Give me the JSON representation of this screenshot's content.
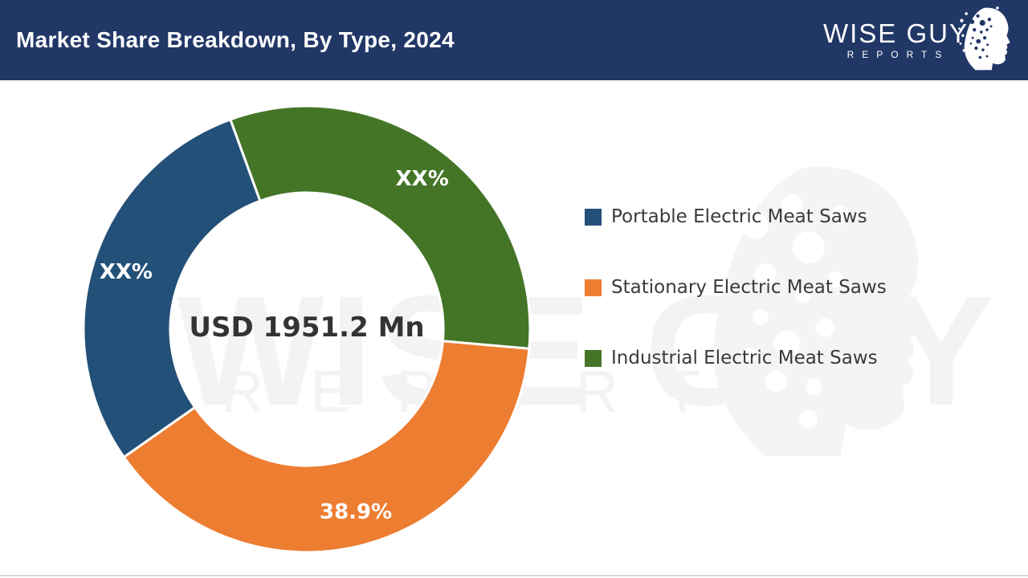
{
  "header": {
    "title": "Market Share Breakdown, By Type, 2024"
  },
  "logo": {
    "name_line": "WISE GUY",
    "sub_line": "REPORTS"
  },
  "watermark": {
    "name_line": "WISE GUY",
    "sub_line": "REPORTS"
  },
  "chart_data": {
    "type": "pie",
    "subtype": "donut",
    "title": "Market Share Breakdown, By Type, 2024",
    "center_label": "USD 1951.2 Mn",
    "legend_position": "right",
    "geometry": {
      "outer_radius": 278,
      "inner_radius": 170,
      "label_radius": 236
    },
    "segments": [
      {
        "id": "portable",
        "label": "Portable Electric Meat Saws",
        "display_label": "XX%",
        "start_angle": 235,
        "end_angle": 340,
        "color": "#235078"
      },
      {
        "id": "stationary",
        "label": "Stationary Electric Meat Saws",
        "display_label": "38.9%",
        "value_pct": 38.9,
        "start_angle": 95,
        "end_angle": 235,
        "color": "#ED7D31"
      },
      {
        "id": "industrial",
        "label": "Industrial Electric Meat Saws",
        "display_label": "XX%",
        "start_angle": -20,
        "end_angle": 95,
        "color": "#447527"
      }
    ]
  },
  "colors": {
    "header_bg": "#213766",
    "center_label": "#333333",
    "legend_text": "#3a3a3a",
    "watermark": "#f3f3f3",
    "bottom_line": "#d9d9d9"
  }
}
